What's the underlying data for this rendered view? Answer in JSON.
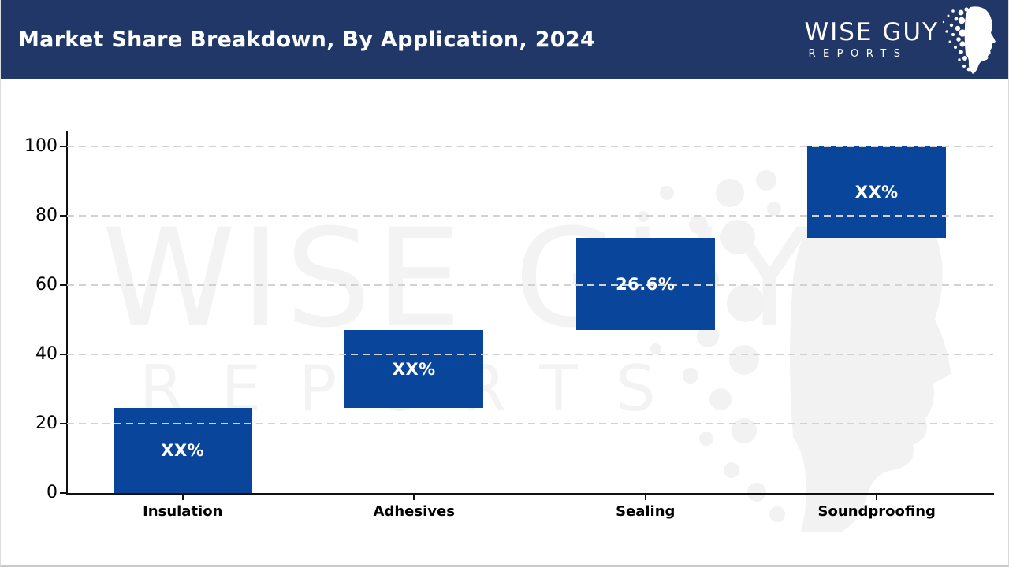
{
  "header": {
    "title": "Market Share Breakdown, By Application, 2024",
    "brand": {
      "line1": "WISE GUY",
      "line2": "REPORTS"
    }
  },
  "watermark": {
    "line1": "WISE GUY",
    "line2": "REPORTS"
  },
  "chart_data": {
    "type": "bar",
    "subtype": "floating-waterfall",
    "title": "Market Share Breakdown, By Application, 2024",
    "xlabel": "",
    "ylabel": "",
    "unit": "%",
    "categories": [
      "Insulation",
      "Adhesives",
      "Sealing",
      "Soundproofing"
    ],
    "segments": [
      {
        "category": "Insulation",
        "start": 0,
        "end": 24.5,
        "label": "XX%"
      },
      {
        "category": "Adhesives",
        "start": 24.5,
        "end": 47.0,
        "label": "XX%"
      },
      {
        "category": "Sealing",
        "start": 47.0,
        "end": 73.6,
        "label": "26.6%"
      },
      {
        "category": "Soundproofing",
        "start": 73.6,
        "end": 100.0,
        "label": "XX%"
      }
    ],
    "yticks": [
      0,
      20,
      40,
      60,
      80,
      100
    ],
    "ylim": [
      0,
      105
    ],
    "grid": "horizontal-dashed",
    "legend": "none"
  },
  "colors": {
    "header_bg": "#203767",
    "bar": "#0a459c",
    "bar_label": "#ffffff",
    "grid": "#d2d2d2",
    "axis": "#111111",
    "text": "#000000",
    "watermark": "#f3f3f3"
  }
}
